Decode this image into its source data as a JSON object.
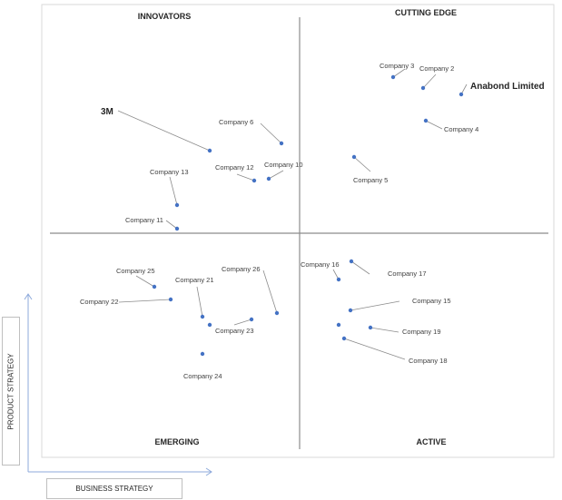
{
  "quadrants": {
    "top_left": "INNOVATORS",
    "top_right": "CUTTING EDGE",
    "bottom_left": "EMERGING",
    "bottom_right": "ACTIVE"
  },
  "axes": {
    "x_label": "BUSINESS STRATEGY",
    "y_label": "PRODUCT STRATEGY"
  },
  "colors": {
    "dot": "#4472c4",
    "leader": "#8c8c8c",
    "divider": "#8c8c8c",
    "frame": "#d9d9d9",
    "arrow": "#8eaadb"
  },
  "companies": [
    {
      "id": "c3",
      "name": "Company 3",
      "quadrant": "CUTTING EDGE"
    },
    {
      "id": "c2",
      "name": "Company 2",
      "quadrant": "CUTTING EDGE"
    },
    {
      "id": "anabond",
      "name": "Anabond  Limited",
      "quadrant": "CUTTING EDGE"
    },
    {
      "id": "c4",
      "name": "Company 4",
      "quadrant": "CUTTING EDGE"
    },
    {
      "id": "c5",
      "name": "Company 5",
      "quadrant": "CUTTING EDGE"
    },
    {
      "id": "3m",
      "name": "3M",
      "quadrant": "INNOVATORS"
    },
    {
      "id": "c6",
      "name": "Company 6",
      "quadrant": "INNOVATORS"
    },
    {
      "id": "c10",
      "name": "Company 10",
      "quadrant": "INNOVATORS"
    },
    {
      "id": "c12",
      "name": "Company 12",
      "quadrant": "INNOVATORS"
    },
    {
      "id": "c13",
      "name": "Company 13",
      "quadrant": "INNOVATORS"
    },
    {
      "id": "c11",
      "name": "Company 11",
      "quadrant": "INNOVATORS"
    },
    {
      "id": "c25",
      "name": "Company 25",
      "quadrant": "EMERGING"
    },
    {
      "id": "c22",
      "name": "Company 22",
      "quadrant": "EMERGING"
    },
    {
      "id": "c21",
      "name": "Company 21",
      "quadrant": "EMERGING"
    },
    {
      "id": "c26",
      "name": "Company 26",
      "quadrant": "EMERGING"
    },
    {
      "id": "c23",
      "name": "Company 23",
      "quadrant": "EMERGING"
    },
    {
      "id": "c24",
      "name": "Company 24",
      "quadrant": "EMERGING"
    },
    {
      "id": "c16",
      "name": "Company 16",
      "quadrant": "ACTIVE"
    },
    {
      "id": "c17",
      "name": "Company 17",
      "quadrant": "ACTIVE"
    },
    {
      "id": "c15",
      "name": "Company 15",
      "quadrant": "ACTIVE"
    },
    {
      "id": "c19",
      "name": "Company 19",
      "quadrant": "ACTIVE"
    },
    {
      "id": "c18",
      "name": "Company 18",
      "quadrant": "ACTIVE"
    }
  ]
}
